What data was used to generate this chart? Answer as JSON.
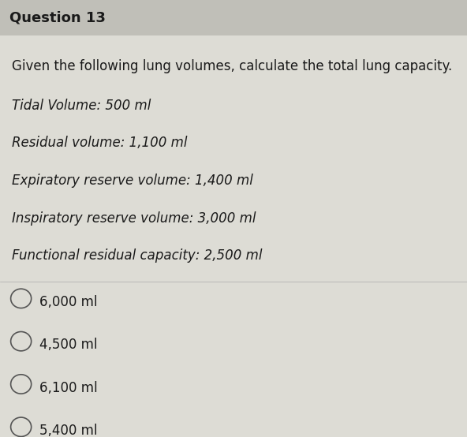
{
  "title": "Question 13",
  "title_bg_color": "#c0bfb8",
  "body_bg_color": "#cccbc4",
  "question_text": "Given the following lung volumes, calculate the total lung capacity.",
  "given_items": [
    "Tidal Volume: 500 ml",
    "Residual volume: 1,100 ml",
    "Expiratory reserve volume: 1,400 ml",
    "Inspiratory reserve volume: 3,000 ml",
    "Functional residual capacity: 2,500 ml"
  ],
  "options": [
    "6,000 ml",
    "4,500 ml",
    "6,100 ml",
    "5,400 ml"
  ],
  "text_color": "#1a1a1a",
  "title_fontsize": 13,
  "body_fontsize": 12,
  "option_fontsize": 12
}
